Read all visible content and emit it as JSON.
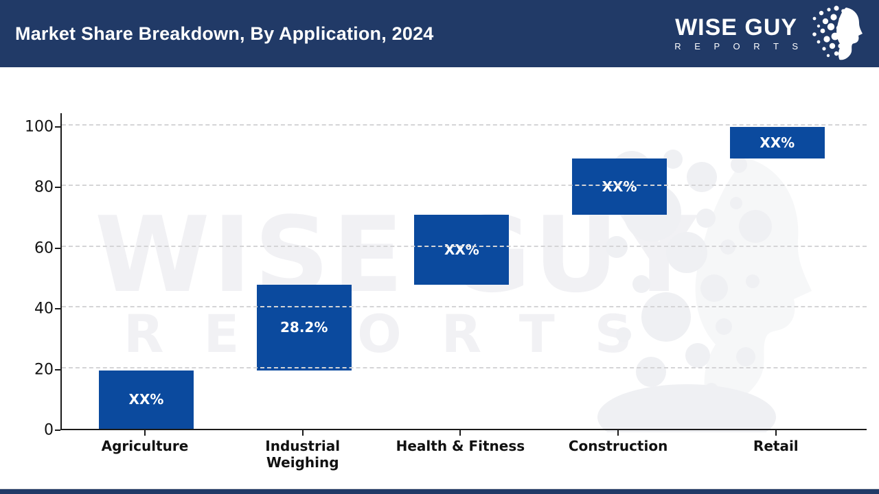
{
  "header": {
    "title": "Market Share Breakdown, By Application, 2024",
    "logo": {
      "line1": "WISE GUY",
      "line2": "R E P O R T S"
    },
    "bg_color": "#213a67"
  },
  "watermark": {
    "line1": "WISE GUY",
    "line2": "REPORTS"
  },
  "footer": {
    "bg_color": "#213a67"
  },
  "chart_data": {
    "type": "bar",
    "subtype": "waterfall-floating-bars",
    "title": "Market Share Breakdown, By Application, 2024",
    "categories": [
      "Agriculture",
      "Industrial Weighing",
      "Health & Fitness",
      "Construction",
      "Retail"
    ],
    "category_lines": [
      [
        "Agriculture"
      ],
      [
        "Industrial",
        "Weighing"
      ],
      [
        "Health & Fitness"
      ],
      [
        "Construction"
      ],
      [
        "Retail"
      ]
    ],
    "segments": [
      {
        "category": "Agriculture",
        "start": 0,
        "end": 19.3,
        "label": "XX%"
      },
      {
        "category": "Industrial Weighing",
        "start": 19.3,
        "end": 47.5,
        "label": "28.2%"
      },
      {
        "category": "Health & Fitness",
        "start": 47.5,
        "end": 70.7,
        "label": "XX%"
      },
      {
        "category": "Construction",
        "start": 70.7,
        "end": 89.2,
        "label": "XX%"
      },
      {
        "category": "Retail",
        "start": 89.2,
        "end": 99.6,
        "label": "XX%"
      }
    ],
    "xlabel": "",
    "ylabel": "",
    "ylim": [
      0,
      100
    ],
    "yticks": [
      0,
      20,
      40,
      60,
      80,
      100
    ],
    "grid": "horizontal-dashed",
    "legend": "none",
    "bar_color": "#0b4a9e",
    "bar_label_color": "#ffffff",
    "axis_color": "#1a1a1a",
    "grid_color": "#d4d4d6",
    "watermark_color": "#f1f1f4"
  }
}
